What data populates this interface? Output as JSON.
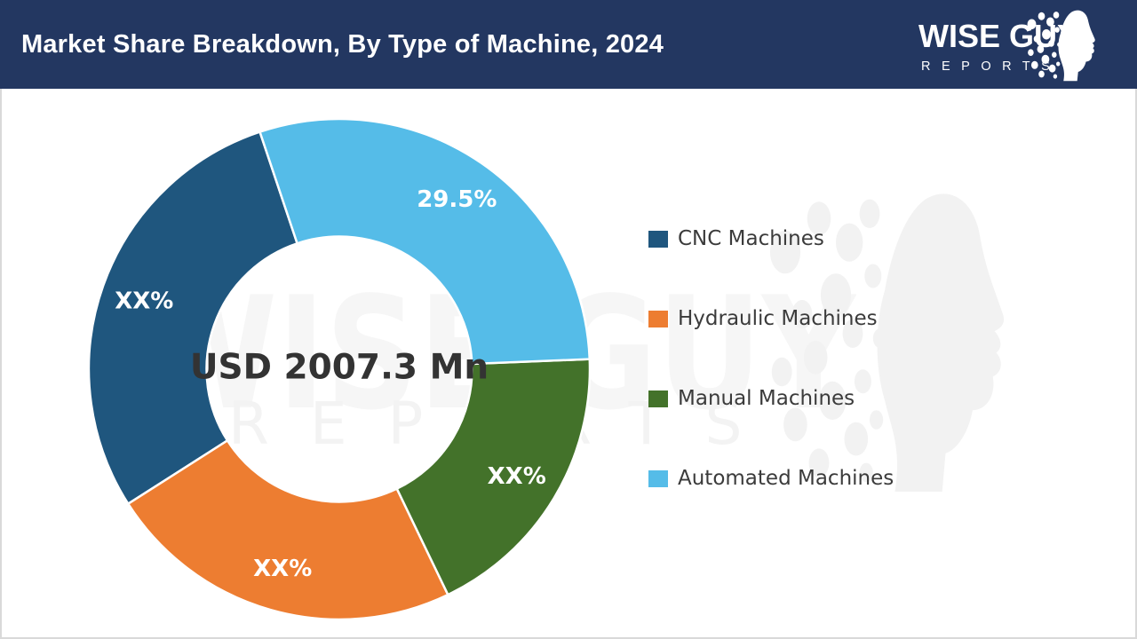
{
  "header": {
    "title": "Market Share Breakdown, By Type of Machine, 2024",
    "logo": {
      "line1": "WISE GUY",
      "line2": "REPORTS"
    }
  },
  "watermark": {
    "line1": "WISE GUY",
    "line2": "REPORTS"
  },
  "colors": {
    "header_bg": "#233761",
    "page_border": "#D9D9D9",
    "title_text": "#FFFFFF",
    "legend_text": "#3B3B3B",
    "center_text": "#333333",
    "slice_label_text": "#FFFFFF",
    "watermark": "#F2F2F2"
  },
  "chart_data": {
    "type": "pie",
    "subtype": "donut",
    "title": "Market Share Breakdown, By Type of Machine, 2024",
    "center_label": "USD 2007.3 Mn",
    "start_angle_deg": 108.5,
    "direction": "counterclockwise",
    "inner_radius_ratio": 0.53,
    "legend_position": "right",
    "grid": false,
    "segments": [
      {
        "label": "CNC Machines",
        "display_value": "XX%",
        "value_pct_est": 28.9,
        "color": "#1F567E"
      },
      {
        "label": "Hydraulic Machines",
        "display_value": "XX%",
        "value_pct_est": 23.1,
        "color": "#ED7D31"
      },
      {
        "label": "Manual Machines",
        "display_value": "XX%",
        "value_pct_est": 18.5,
        "color": "#43722A"
      },
      {
        "label": "Automated Machines",
        "display_value": "29.5%",
        "value_pct_est": 29.5,
        "color": "#55BCE8"
      }
    ]
  }
}
